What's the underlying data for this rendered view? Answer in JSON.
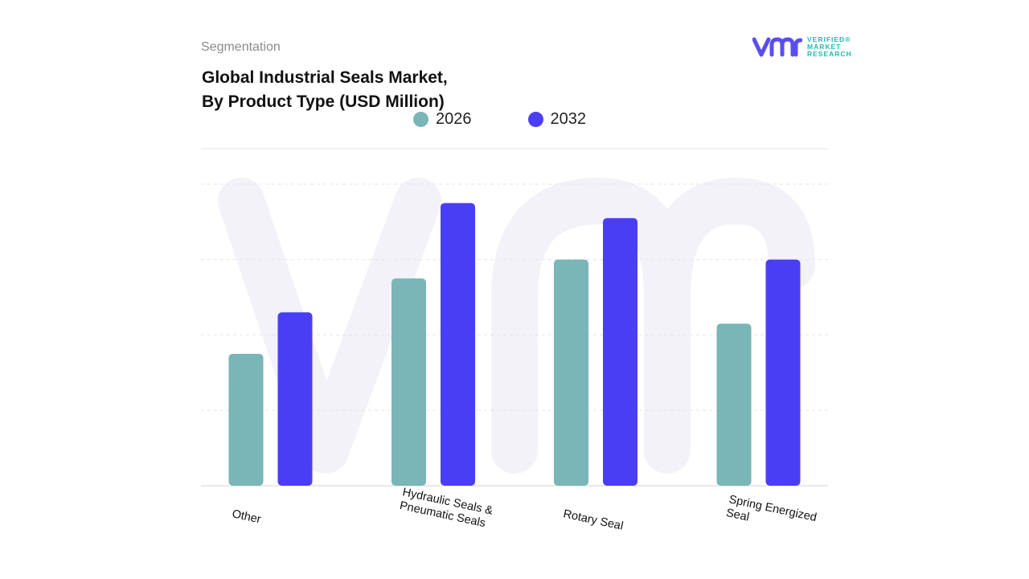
{
  "header": {
    "segmentation": "Segmentation",
    "title_line1": "Global Industrial Seals Market,",
    "title_line2": "By Product Type (USD Million)"
  },
  "logo": {
    "line1": "VERIFIED",
    "line2": "MARKET",
    "line3": "RESEARCH",
    "registered": "®"
  },
  "colors": {
    "series_2026": "#7ab5b7",
    "series_2032": "#4a3ef5",
    "logo_mark": "#5a4ef0",
    "logo_text": "#22b8b0",
    "gridline": "#e6e6e6",
    "watermark": "#f2f2f8"
  },
  "chart_data": {
    "type": "bar",
    "title": "Global Industrial Seals Market, By Product Type (USD Million)",
    "xlabel": "",
    "ylabel": "",
    "categories": [
      "Other",
      "Hydraulic Seals & Pneumatic Seals",
      "Rotary Seal",
      "Spring Energized Seal"
    ],
    "category_label_lines": [
      [
        "Other"
      ],
      [
        "Hydraulic Seals &",
        "Pneumatic Seals"
      ],
      [
        "Rotary Seal"
      ],
      [
        "Spring Energized",
        "Seal"
      ]
    ],
    "series": [
      {
        "name": "2026",
        "values": [
          1.75,
          2.75,
          3.0,
          2.15
        ]
      },
      {
        "name": "2032",
        "values": [
          2.3,
          3.75,
          3.55,
          3.0
        ]
      }
    ],
    "ylim": [
      0,
      4
    ],
    "grid": true,
    "legend": "top-center",
    "watermark_icon": "vmr-logo-watermark"
  }
}
